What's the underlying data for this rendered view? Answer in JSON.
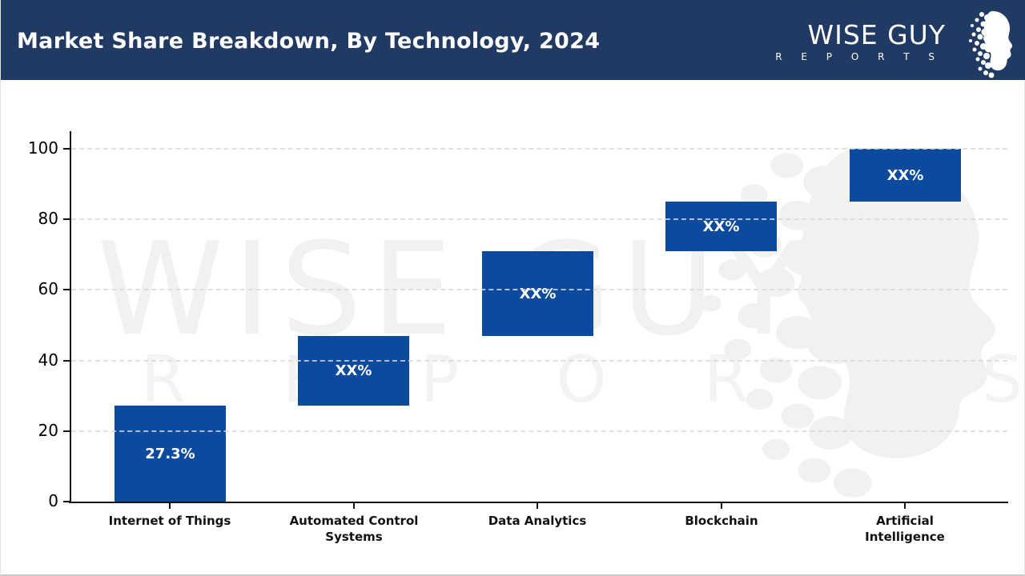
{
  "header": {
    "title": "Market Share Breakdown, By Technology, 2024",
    "bg_color": "#213a64",
    "logo": {
      "wordmark": "WISE GUY",
      "subtext": "R E P O R T S"
    }
  },
  "watermark": {
    "line1": "WISE GUY",
    "line2": "R E P O R T S"
  },
  "chart_data": {
    "type": "bar",
    "subtype": "waterfall",
    "title": "Market Share Breakdown, By Technology, 2024",
    "categories": [
      "Internet of Things",
      "Automated Control Systems",
      "Data Analytics",
      "Blockchain",
      "Artificial Intelligence"
    ],
    "segments": [
      {
        "category": "Internet of Things",
        "label": "27.3%",
        "start": 0,
        "end": 27.3
      },
      {
        "category": "Automated Control Systems",
        "label": "XX%",
        "start": 27.3,
        "end": 47
      },
      {
        "category": "Data Analytics",
        "label": "XX%",
        "start": 47,
        "end": 71
      },
      {
        "category": "Blockchain",
        "label": "XX%",
        "start": 71,
        "end": 85
      },
      {
        "category": "Artificial Intelligence",
        "label": "XX%",
        "start": 85,
        "end": 100
      }
    ],
    "xlabel": "",
    "ylabel": "",
    "yticks": [
      0,
      20,
      40,
      60,
      80,
      100
    ],
    "ylim": [
      0,
      105
    ],
    "grid": true,
    "grid_style": "dashed",
    "legend": false,
    "bar_color": "#0b4a9f",
    "bar_label_color": "#ffffff",
    "axis_color": "#111111",
    "grid_color": "#d9d9d9"
  }
}
